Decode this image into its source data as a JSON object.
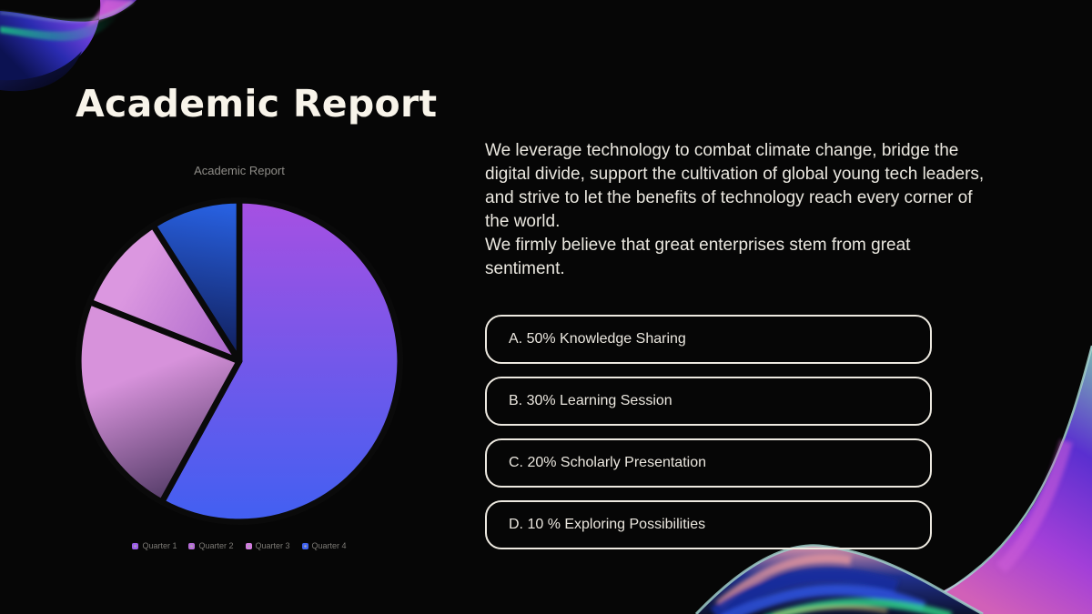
{
  "slide_title": "Academic Report",
  "description": {
    "lines": [
      "We leverage technology to combat climate change, bridge the",
      "digital divide, support the cultivation of global young tech leaders,",
      "and strive to let the benefits of technology reach every corner of",
      "the world.",
      "We firmly believe that great enterprises stem from great",
      "sentiment."
    ]
  },
  "options": [
    {
      "label": "A. 50% Knowledge Sharing"
    },
    {
      "label": "B. 30% Learning Session"
    },
    {
      "label": "C. 20% Scholarly Presentation"
    },
    {
      "label": "D. 10 % Exploring Possibilities"
    }
  ],
  "chart_data": {
    "type": "pie",
    "title": "Academic Report",
    "categories": [
      "Quarter 1",
      "Quarter 2",
      "Quarter 3",
      "Quarter 4"
    ],
    "values": [
      58,
      23,
      10,
      9
    ],
    "start_angle_deg": 0,
    "direction": "clockwise",
    "legend_position": "bottom",
    "slice_gradients": [
      {
        "from": "#a750e2",
        "to": "#3f60f2"
      },
      {
        "from": "#d792db",
        "to": "#1f1939"
      },
      {
        "from": "#db97e0",
        "to": "#a763c8"
      },
      {
        "from": "#2a67ee",
        "to": "#101c55"
      }
    ],
    "legend_marker_colors": [
      "#9b5ce8",
      "#b56cd6",
      "#d27be0",
      "#3f62f0"
    ],
    "title_color": "#8e8c87",
    "legend_text_color": "#7b7974"
  },
  "colors": {
    "background": "#060606",
    "heading_text": "#f8f4ea",
    "body_text": "#eae7df",
    "option_border": "#ede9e0",
    "slice_divider": "#0a0a0a"
  }
}
